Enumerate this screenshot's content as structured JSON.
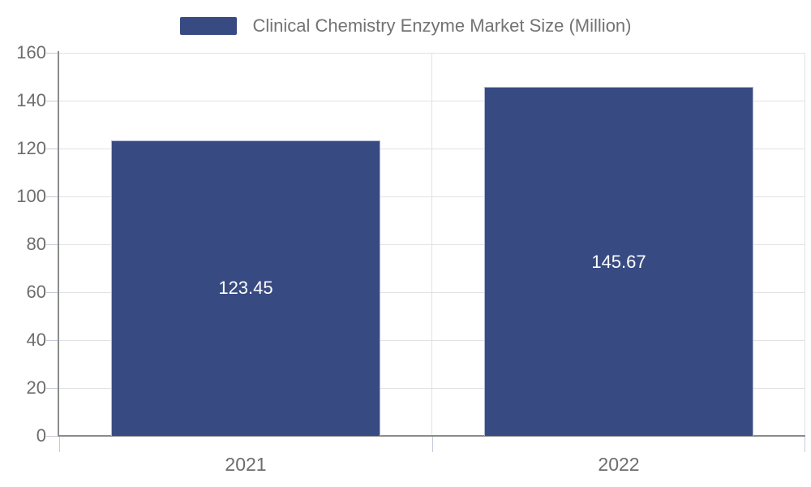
{
  "legend": {
    "label": "Clinical Chemistry Enzyme Market Size (Million)"
  },
  "chart_data": {
    "type": "bar",
    "title": "Clinical Chemistry Enzyme Market Size (Million)",
    "categories": [
      "2021",
      "2022"
    ],
    "values": [
      123.45,
      145.67
    ],
    "data_labels": [
      "123.45",
      "145.67"
    ],
    "xlabel": "",
    "ylabel": "",
    "ylim": [
      0,
      160
    ],
    "yticks": [
      0,
      20,
      40,
      60,
      80,
      100,
      120,
      140,
      160
    ],
    "grid": true,
    "legend_position": "top-center",
    "bar_width_fraction": 0.72
  },
  "colors": {
    "bar_fill": "#374a82",
    "bar_border": "#b2b8d5",
    "gridline": "#e2e2e2",
    "axis_line": "#8b8b8b",
    "tick": "#c4cad9",
    "axis_label_text": "#6d6d6d",
    "legend_text": "#737373",
    "data_label_text": "#ffffff",
    "background": "#ffffff"
  }
}
